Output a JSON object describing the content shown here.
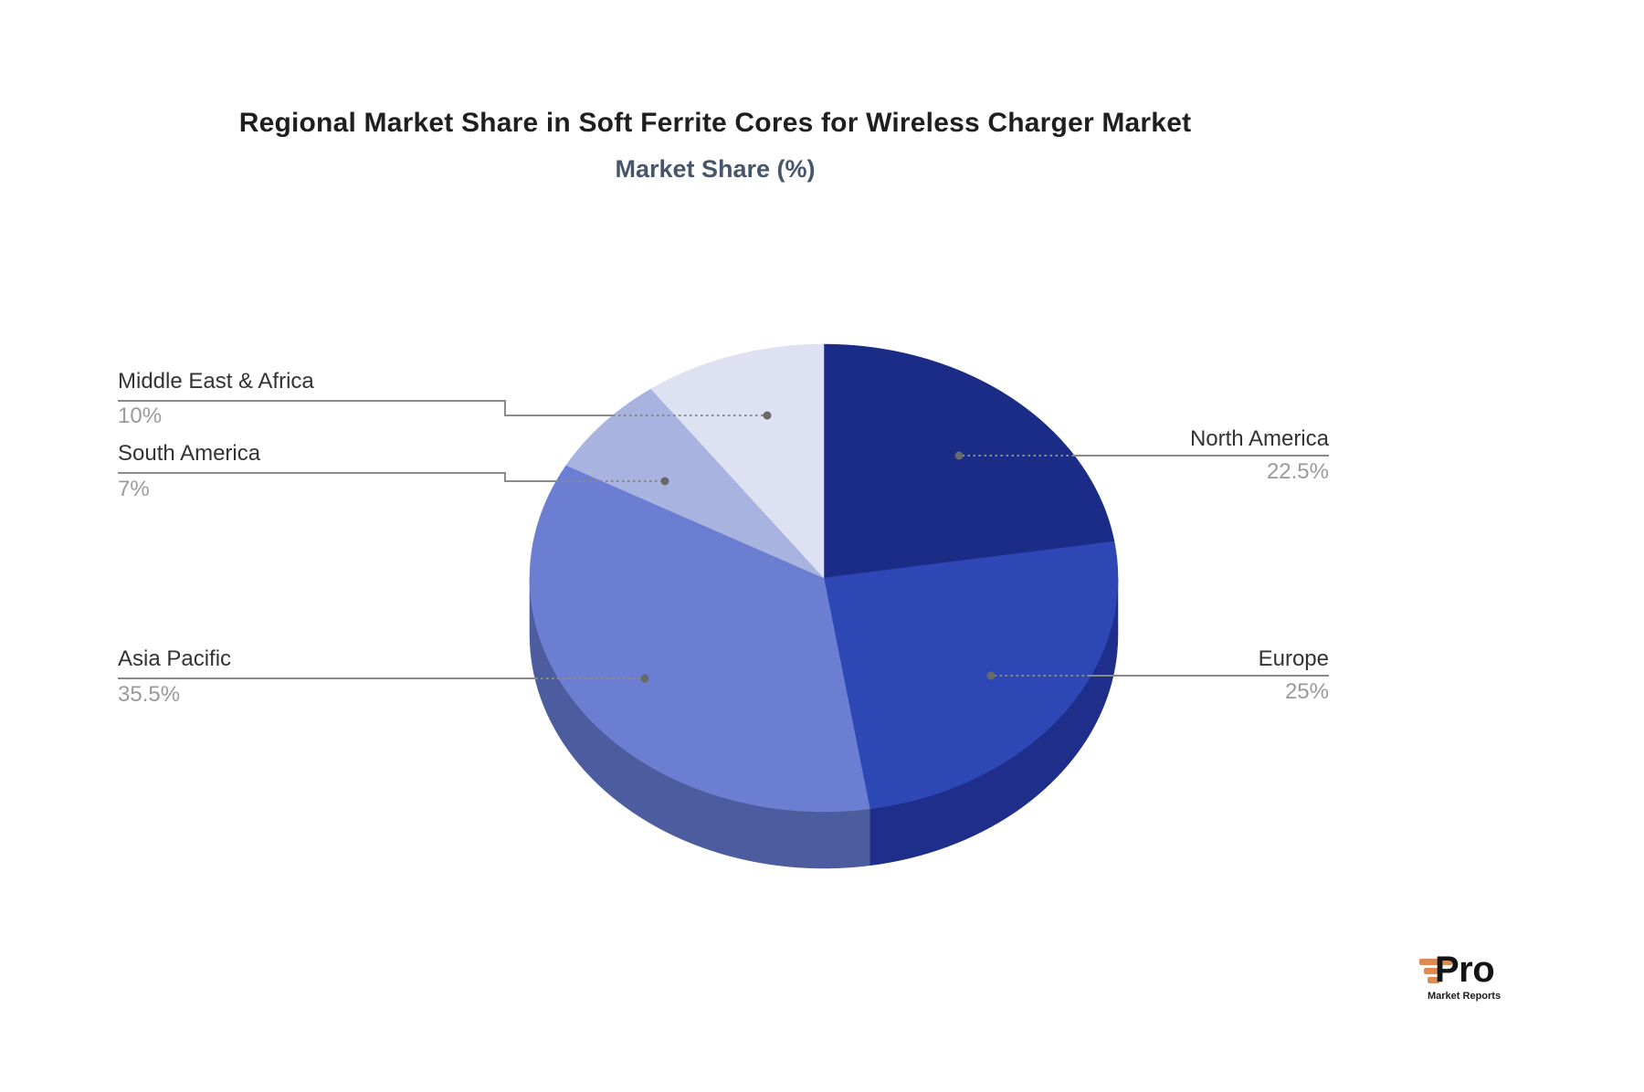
{
  "title": "Regional Market Share in Soft Ferrite Cores for Wireless Charger Market",
  "subtitle": "Market Share (%)",
  "chart_data": {
    "type": "pie",
    "unit": "%",
    "effect": "3d",
    "start_angle_deg": -90,
    "direction": "clockwise",
    "legend_position": "callout-labels",
    "series": [
      {
        "label": "North America",
        "value": 22.5,
        "display": "22.5%",
        "color": "#1b2c87",
        "color_side": "#141f63"
      },
      {
        "label": "Europe",
        "value": 25,
        "display": "25%",
        "color": "#2d47b5",
        "color_side": "#1e2e8a"
      },
      {
        "label": "Asia Pacific",
        "value": 35.5,
        "display": "35.5%",
        "color": "#6b7ed1",
        "color_side": "#4d5c9e"
      },
      {
        "label": "South America",
        "value": 7,
        "display": "7%",
        "color": "#a9b3e0",
        "color_side": "#7a86b8"
      },
      {
        "label": "Middle East & Africa",
        "value": 10,
        "display": "10%",
        "color": "#dde1f1",
        "color_side": "#aab1d3"
      }
    ],
    "callout_line_color": "#8a8a8a",
    "label_name_color": "#333333",
    "label_value_color": "#9a9a9a"
  },
  "logo": {
    "name": "Pro",
    "subtext": "Market Reports",
    "accent_color": "#dd8a55"
  }
}
